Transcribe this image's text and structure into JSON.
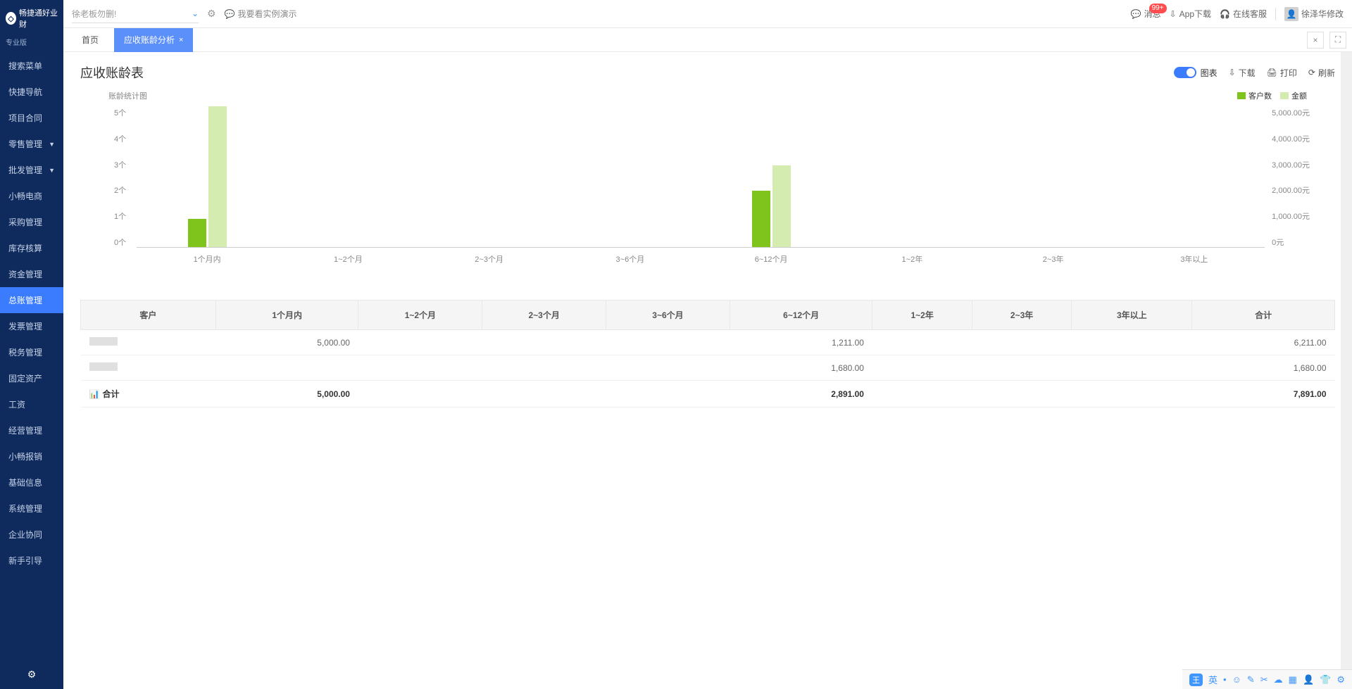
{
  "brand": {
    "name": "畅捷通好业财",
    "edition": "专业版"
  },
  "org": {
    "selected": "徐老板勿删!"
  },
  "topbar": {
    "demo": "我要看实例演示",
    "messages": "消息",
    "badge": "99+",
    "appDownload": "App下载",
    "customerService": "在线客服",
    "userName": "徐泽华修改"
  },
  "sidebarItems": [
    {
      "label": "搜索菜单",
      "caret": false
    },
    {
      "label": "快捷导航",
      "caret": false
    },
    {
      "label": "项目合同",
      "caret": false
    },
    {
      "label": "零售管理",
      "caret": true
    },
    {
      "label": "批发管理",
      "caret": true
    },
    {
      "label": "小畅电商",
      "caret": false
    },
    {
      "label": "采购管理",
      "caret": false
    },
    {
      "label": "库存核算",
      "caret": false
    },
    {
      "label": "资金管理",
      "caret": false
    },
    {
      "label": "总账管理",
      "caret": false,
      "active": true
    },
    {
      "label": "发票管理",
      "caret": false
    },
    {
      "label": "税务管理",
      "caret": false
    },
    {
      "label": "固定资产",
      "caret": false
    },
    {
      "label": "工资",
      "caret": false
    },
    {
      "label": "经营管理",
      "caret": false
    },
    {
      "label": "小畅报销",
      "caret": false
    },
    {
      "label": "基础信息",
      "caret": false
    },
    {
      "label": "系统管理",
      "caret": false
    },
    {
      "label": "企业协同",
      "caret": false
    },
    {
      "label": "新手引导",
      "caret": false
    }
  ],
  "tabs": {
    "home": "首页",
    "active": "应收账龄分析"
  },
  "page": {
    "title": "应收账龄表",
    "chartToggle": "图表",
    "download": "下载",
    "print": "打印",
    "refresh": "刷新"
  },
  "chart": {
    "title": "账龄统计图",
    "legend": {
      "customers": "客户数",
      "amount": "金额"
    },
    "colors": {
      "customers": "#7fc41c",
      "amount": "#d4ecb0",
      "axis": "#888888",
      "grid": "#cccccc"
    },
    "leftAxis": {
      "max": 5,
      "unit": "个",
      "ticks": [
        "5个",
        "4个",
        "3个",
        "2个",
        "1个",
        "0个"
      ]
    },
    "rightAxis": {
      "max": 5000,
      "unit": "元",
      "ticks": [
        "5,000.00元",
        "4,000.00元",
        "3,000.00元",
        "2,000.00元",
        "1,000.00元",
        "0元"
      ]
    },
    "categories": [
      "1个月内",
      "1~2个月",
      "2~3个月",
      "3~6个月",
      "6~12个月",
      "1~2年",
      "2~3年",
      "3年以上"
    ],
    "series": {
      "customers": [
        1,
        0,
        0,
        0,
        2,
        0,
        0,
        0
      ],
      "amount": [
        5000,
        0,
        0,
        0,
        2891,
        0,
        0,
        0
      ]
    }
  },
  "table": {
    "columns": [
      "客户",
      "1个月内",
      "1~2个月",
      "2~3个月",
      "3~6个月",
      "6~12个月",
      "1~2年",
      "2~3年",
      "3年以上",
      "合计"
    ],
    "rows": [
      {
        "cells": [
          "",
          "5,000.00",
          "",
          "",
          "",
          "1,211.00",
          "",
          "",
          "",
          "6,211.00"
        ],
        "redactFirst": true
      },
      {
        "cells": [
          "",
          "",
          "",
          "",
          "",
          "1,680.00",
          "",
          "",
          "",
          "1,680.00"
        ],
        "redactFirst": true
      }
    ],
    "totalRow": {
      "label": "合计",
      "cells": [
        "5,000.00",
        "",
        "",
        "",
        "2,891.00",
        "",
        "",
        "",
        "7,891.00"
      ]
    }
  },
  "taskbar": {
    "ime": "王",
    "lang": "英"
  }
}
